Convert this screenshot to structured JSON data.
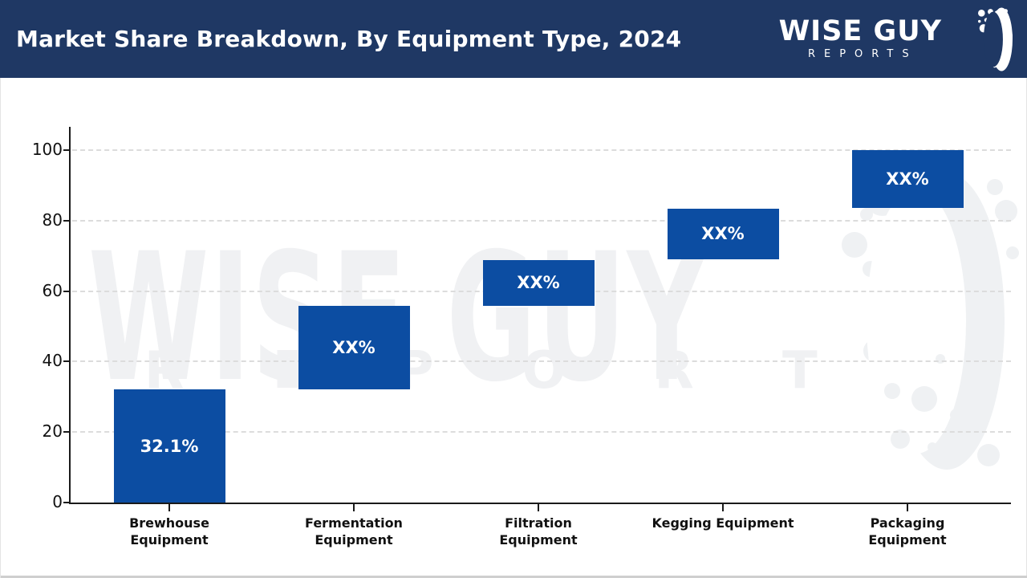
{
  "header": {
    "title": "Market Share Breakdown, By Equipment Type, 2024",
    "logo_line1": "WISE GUY",
    "logo_line2": "REPORTS",
    "bg_color": "#1f3864"
  },
  "watermark": {
    "line1": "WISE GUY",
    "line2": "R E P O R T S"
  },
  "chart_data": {
    "type": "bar",
    "subtype": "floating-waterfall",
    "title": "Market Share Breakdown, By Equipment Type, 2024",
    "categories": [
      "Brewhouse Equipment",
      "Fermentation Equipment",
      "Filtration Equipment",
      "Kegging Equipment",
      "Packaging Equipment"
    ],
    "category_label_lines": [
      [
        "Brewhouse",
        "Equipment"
      ],
      [
        "Fermentation",
        "Equipment"
      ],
      [
        "Filtration",
        "Equipment"
      ],
      [
        "Kegging Equipment"
      ],
      [
        "Packaging",
        "Equipment"
      ]
    ],
    "segments": [
      {
        "category": "Brewhouse Equipment",
        "start": 0,
        "end": 32.1,
        "label": "32.1%"
      },
      {
        "category": "Fermentation Equipment",
        "start": 32.1,
        "end": 55.7,
        "label": "XX%"
      },
      {
        "category": "Filtration Equipment",
        "start": 55.9,
        "end": 68.9,
        "label": "XX%"
      },
      {
        "category": "Kegging Equipment",
        "start": 69.0,
        "end": 83.4,
        "label": "XX%"
      },
      {
        "category": "Packaging Equipment",
        "start": 83.6,
        "end": 100,
        "label": "XX%"
      }
    ],
    "xlabel": "",
    "ylabel": "",
    "ylim": [
      0,
      100
    ],
    "yticks": [
      0,
      20,
      40,
      60,
      80,
      100
    ],
    "grid": "horizontal-dashed",
    "legend": "none",
    "bar_color": "#0c4da2",
    "bar_label_color": "#ffffff",
    "axis_color": "#1a1a1a"
  }
}
